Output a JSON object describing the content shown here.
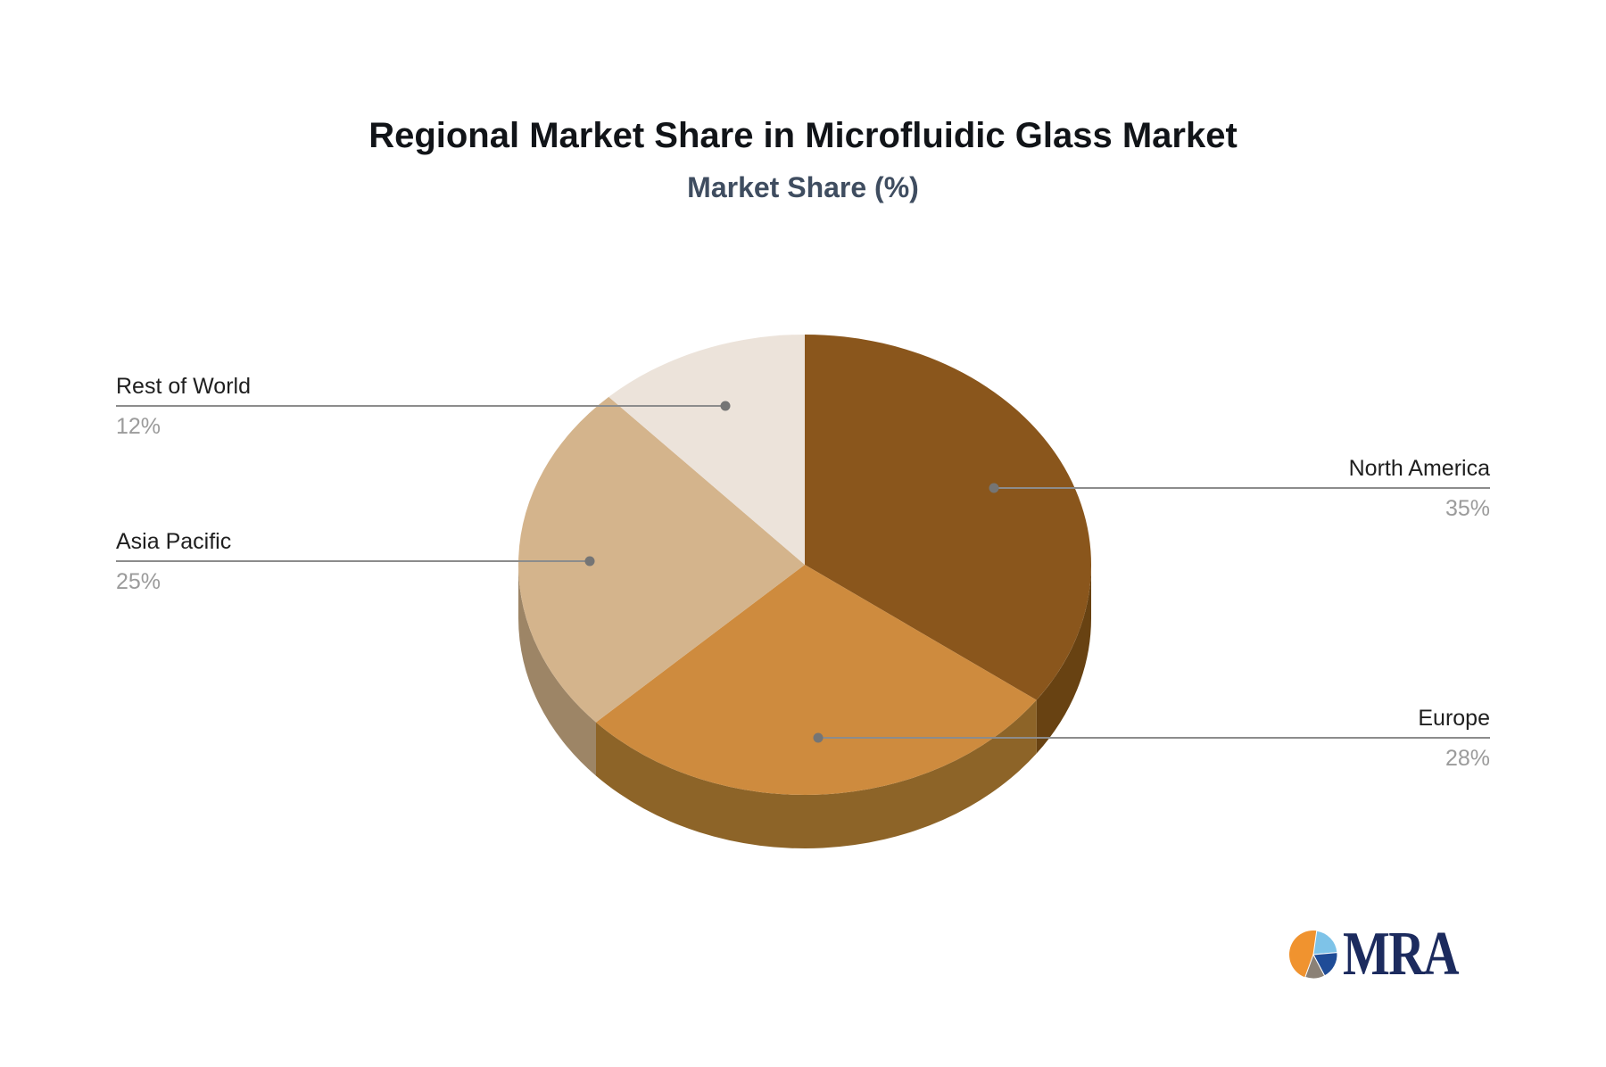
{
  "page": {
    "background": "#ffffff"
  },
  "header": {
    "title": "Regional Market Share in Microfluidic Glass Market",
    "subtitle": "Market Share (%)"
  },
  "chart_data": {
    "type": "pie",
    "style": "3d",
    "title": "Regional Market Share in Microfluidic Glass Market",
    "subtitle": "Market Share (%)",
    "unit": "%",
    "start_angle": "12-o-clock",
    "direction": "clockwise",
    "legend": "none",
    "slices": [
      {
        "label": "North America",
        "value": 35,
        "display": "35%",
        "color": "#8a561c",
        "side_color": "#684212",
        "label_side": "right"
      },
      {
        "label": "Europe",
        "value": 28,
        "display": "28%",
        "color": "#ce8b3e",
        "side_color": "#8d6428",
        "label_side": "right"
      },
      {
        "label": "Asia Pacific",
        "value": 25,
        "display": "25%",
        "color": "#d4b48c",
        "side_color": "#9d8566",
        "label_side": "left"
      },
      {
        "label": "Rest of World",
        "value": 12,
        "display": "12%",
        "color": "#ece3da",
        "side_color": "#b5aca0",
        "label_side": "left"
      }
    ],
    "label_name_color": "#1f1f1f",
    "label_value_color": "#9b9b9b",
    "leader_line_color": "#8c8c8c",
    "leader_dot_color": "#757575"
  },
  "logo": {
    "text": "MRA",
    "text_color": "#1c2b5e",
    "icon_colors": {
      "orange": "#f0932f",
      "light_blue": "#7ec3e8",
      "navy": "#1f4c97",
      "grey": "#8b8176"
    }
  }
}
